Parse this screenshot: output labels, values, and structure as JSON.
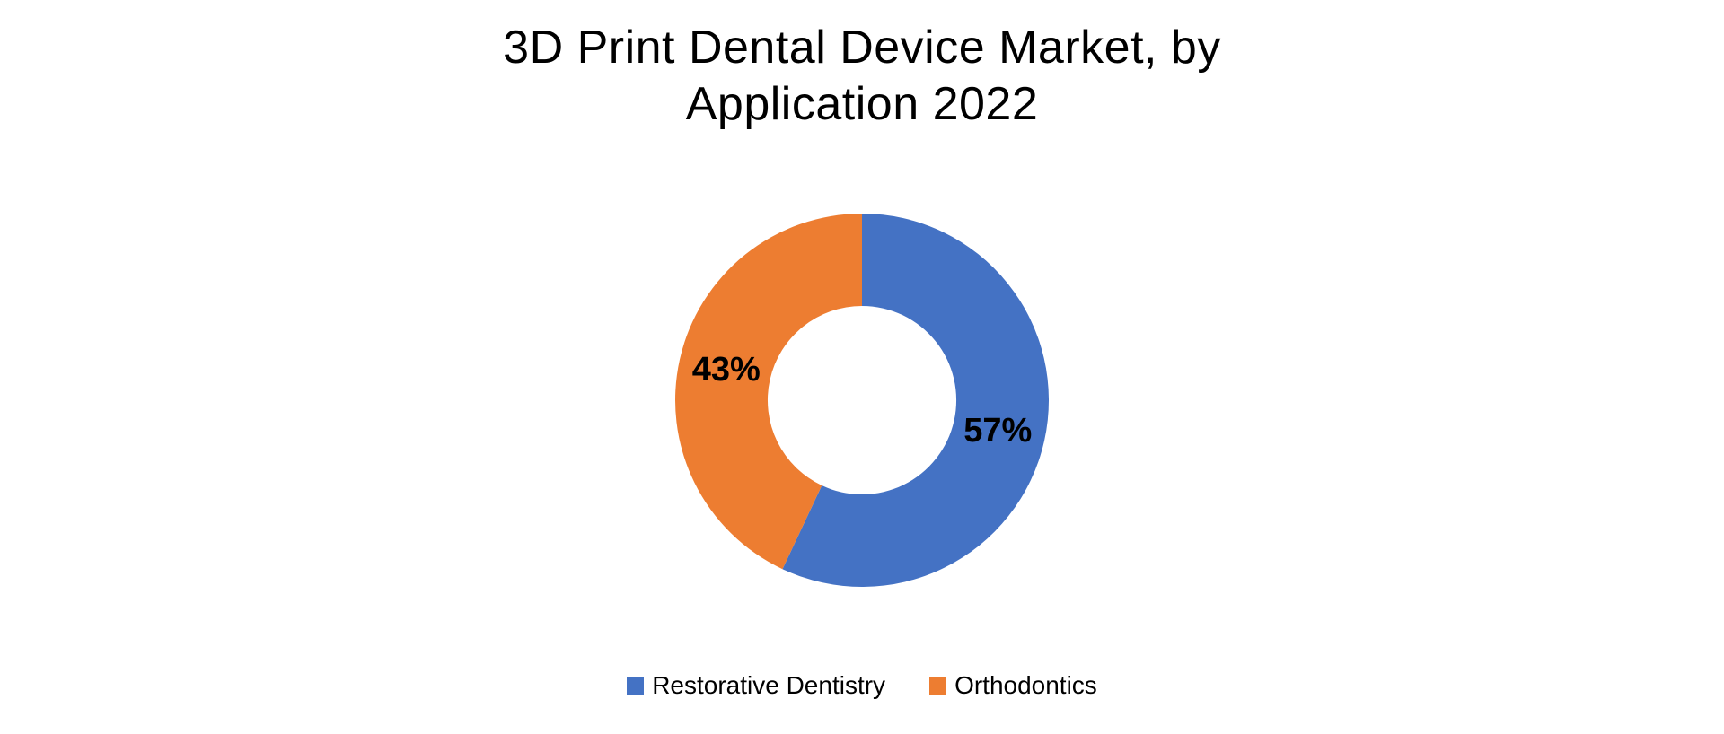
{
  "title": {
    "line1": "3D Print Dental Device Market, by",
    "line2": "Application 2022"
  },
  "chart_data": {
    "type": "pie",
    "subtype": "donut",
    "title": "3D Print Dental Device Market, by Application 2022",
    "categories": [
      "Restorative Dentistry",
      "Orthodontics"
    ],
    "values": [
      57,
      43
    ],
    "value_labels": [
      "57%",
      "43%"
    ],
    "colors": [
      "#4472C4",
      "#ED7D31"
    ],
    "start_angle": "top",
    "direction": "clockwise",
    "inner_radius_ratio": 0.505,
    "data_label_color": "#000000",
    "legend_position": "bottom",
    "background": "#FFFFFF"
  },
  "legend": {
    "items": [
      {
        "label": "Restorative Dentistry",
        "color": "#4472C4"
      },
      {
        "label": "Orthodontics",
        "color": "#ED7D31"
      }
    ]
  }
}
